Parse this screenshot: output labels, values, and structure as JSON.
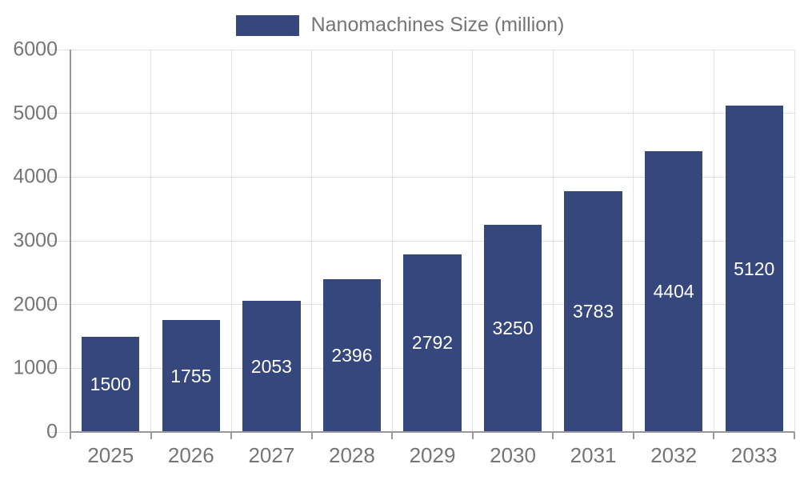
{
  "chart_data": {
    "type": "bar",
    "categories": [
      "2025",
      "2026",
      "2027",
      "2028",
      "2029",
      "2030",
      "2031",
      "2032",
      "2033"
    ],
    "series": [
      {
        "name": "Nanomachines Size (million)",
        "values": [
          1500,
          1755,
          2053,
          2396,
          2792,
          3250,
          3783,
          4404,
          5120
        ]
      }
    ],
    "xlabel": "",
    "ylabel": "",
    "ylim": [
      0,
      6000
    ],
    "yticks": [
      0,
      1000,
      2000,
      3000,
      4000,
      5000,
      6000
    ],
    "grid": "both",
    "legend_position": "top-center",
    "bar_labels_inside": true,
    "colors": {
      "bar": "#36477D",
      "bar_value_label": "#ffffff",
      "grid": "#e2e2e2",
      "axis": "#999999",
      "tick_label": "#757575"
    }
  }
}
